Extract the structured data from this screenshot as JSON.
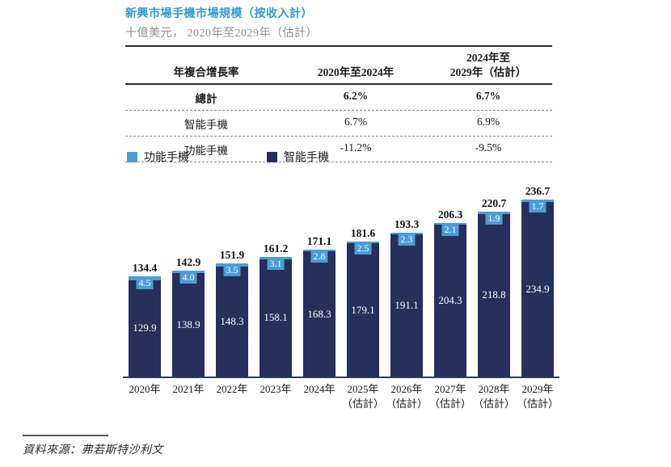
{
  "page": {
    "title": "新興市場手機市場規模（按收入計）",
    "subtitle": "十億美元， 2020年至2029年（估計）",
    "source": "資料來源：弗若斯特沙利文"
  },
  "colors": {
    "title_blue": "#3399cc",
    "feature_phone_blue": "#4b9ed7",
    "smartphone_navy": "#272f5d",
    "axis_line": "#2f3a68"
  },
  "table": {
    "header": {
      "col1": "年複合增長率",
      "col2": "2020年至2024年",
      "col3_line1": "2024年至",
      "col3_line2": "2029年（估計）"
    },
    "rows": [
      {
        "label": "總計",
        "v1": "6.2%",
        "v2": "6.7%",
        "bold": true
      },
      {
        "label": "智能手機",
        "v1": "6.7%",
        "v2": "6.9%",
        "bold": false
      },
      {
        "label": "功能手機",
        "v1": "-11.2%",
        "v2": "-9.5%",
        "bold": false
      }
    ]
  },
  "legend": [
    {
      "label": "功能手機",
      "color": "#4b9ed7"
    },
    {
      "label": "智能手機",
      "color": "#272f5d"
    }
  ],
  "chart_data": {
    "type": "bar",
    "stacked": true,
    "title": "新興市場手機市場規模（按收入計）",
    "ylabel": "十億美元",
    "categories": [
      "2020年",
      "2021年",
      "2022年",
      "2023年",
      "2024年",
      "2025年",
      "2026年",
      "2027年",
      "2028年",
      "2029年"
    ],
    "category_notes": [
      "",
      "",
      "",
      "",
      "",
      "（估計）",
      "（估計）",
      "（估計）",
      "（估計）",
      "（估計）"
    ],
    "series": [
      {
        "name": "智能手機",
        "color": "#272f5d",
        "values": [
          129.9,
          138.9,
          148.3,
          158.1,
          168.3,
          179.1,
          191.1,
          204.3,
          218.8,
          234.9
        ]
      },
      {
        "name": "功能手機",
        "color": "#4b9ed7",
        "values": [
          4.5,
          4.0,
          3.5,
          3.1,
          2.8,
          2.5,
          2.3,
          2.1,
          1.9,
          1.7
        ]
      }
    ],
    "totals": [
      134.4,
      142.9,
      151.9,
      161.2,
      171.1,
      181.6,
      193.3,
      206.3,
      220.7,
      236.7
    ],
    "ylim": [
      0,
      240
    ],
    "grid": false,
    "legend_position": "top-left"
  }
}
